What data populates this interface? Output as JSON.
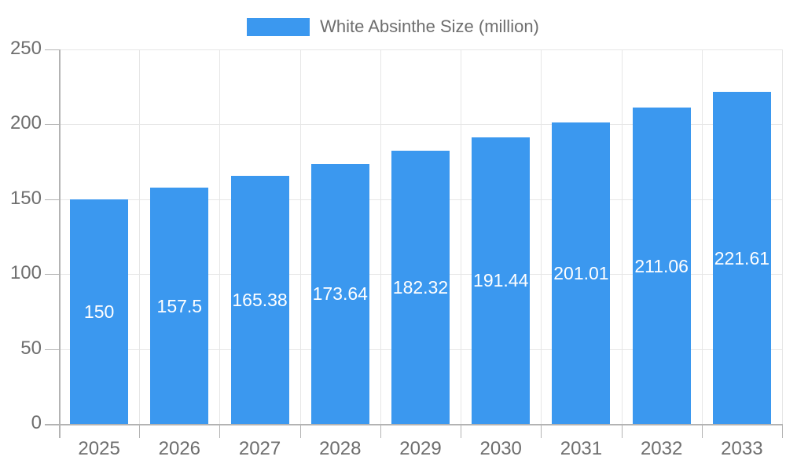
{
  "chart_data": {
    "type": "bar",
    "title": "",
    "legend": "White Absinthe Size (million)",
    "legend_position": "top-center",
    "categories": [
      "2025",
      "2026",
      "2027",
      "2028",
      "2029",
      "2030",
      "2031",
      "2032",
      "2033"
    ],
    "series": [
      {
        "name": "White Absinthe Size (million)",
        "values": [
          150,
          157.5,
          165.38,
          173.64,
          182.32,
          191.44,
          201.01,
          211.06,
          221.61
        ],
        "labels": [
          "150",
          "157.5",
          "165.38",
          "173.64",
          "182.32",
          "191.44",
          "201.01",
          "211.06",
          "221.61"
        ]
      }
    ],
    "xlabel": "",
    "ylabel": "",
    "ylim": [
      0,
      250
    ],
    "yticks": [
      0,
      50,
      100,
      150,
      200,
      250
    ],
    "grid": true,
    "bar_label_position": "inside-center",
    "colors": {
      "bar": "#3B98EF",
      "bar_label": "#ffffff",
      "axis": "#b3b3b3",
      "gridline": "#e6e6e6",
      "text": "#6e6e6e",
      "background": "#ffffff"
    }
  }
}
